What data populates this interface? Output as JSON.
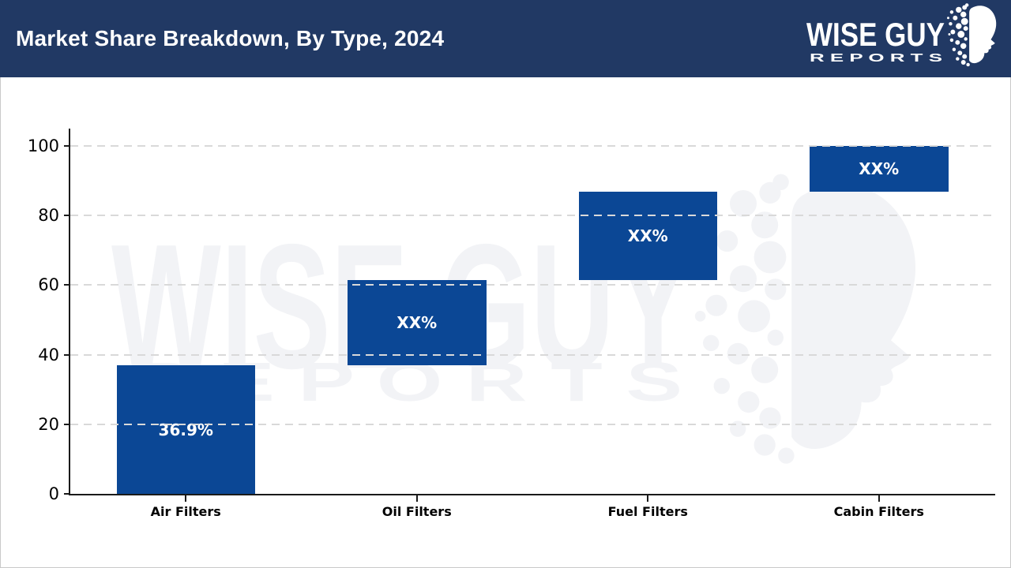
{
  "header": {
    "title": "Market Share Breakdown, By Type, 2024",
    "logo": {
      "line1": "WISE GUY",
      "line2": "R E P O R T S",
      "head_icon": "dot-head-profile-icon"
    }
  },
  "watermark": {
    "line1": "WISE GUY",
    "line2": "R E P O R T S",
    "head_icon": "dot-head-profile-icon"
  },
  "colors": {
    "header_bg": "#213964",
    "bar": "#0b4795",
    "bar_label": "#ffffff",
    "axis": "#1a1a1a",
    "grid": "#d9d9d9",
    "watermark": "#f2f3f6",
    "frame_border": "#c9c9c9",
    "title_text": "#ffffff",
    "tick_text": "#000000"
  },
  "chart_data": {
    "type": "bar",
    "variant": "floating-waterfall",
    "title": "Market Share Breakdown, By Type, 2024",
    "categories": [
      "Air Filters",
      "Oil Filters",
      "Fuel Filters",
      "Cabin Filters"
    ],
    "bars": [
      {
        "category": "Air Filters",
        "start": 0,
        "end": 36.9,
        "label": "36.9%"
      },
      {
        "category": "Oil Filters",
        "start": 36.9,
        "end": 61.5,
        "label": "XX%"
      },
      {
        "category": "Fuel Filters",
        "start": 61.5,
        "end": 86.8,
        "label": "XX%"
      },
      {
        "category": "Cabin Filters",
        "start": 86.8,
        "end": 100,
        "label": "XX%"
      }
    ],
    "xlabel": "",
    "ylabel": "",
    "yticks": [
      0,
      20,
      40,
      60,
      80,
      100
    ],
    "ylim": [
      0,
      104.5
    ],
    "grid": "horizontal-dashed",
    "grid_over_bars": true,
    "legend": "none",
    "bar_color": "#0b4795"
  }
}
